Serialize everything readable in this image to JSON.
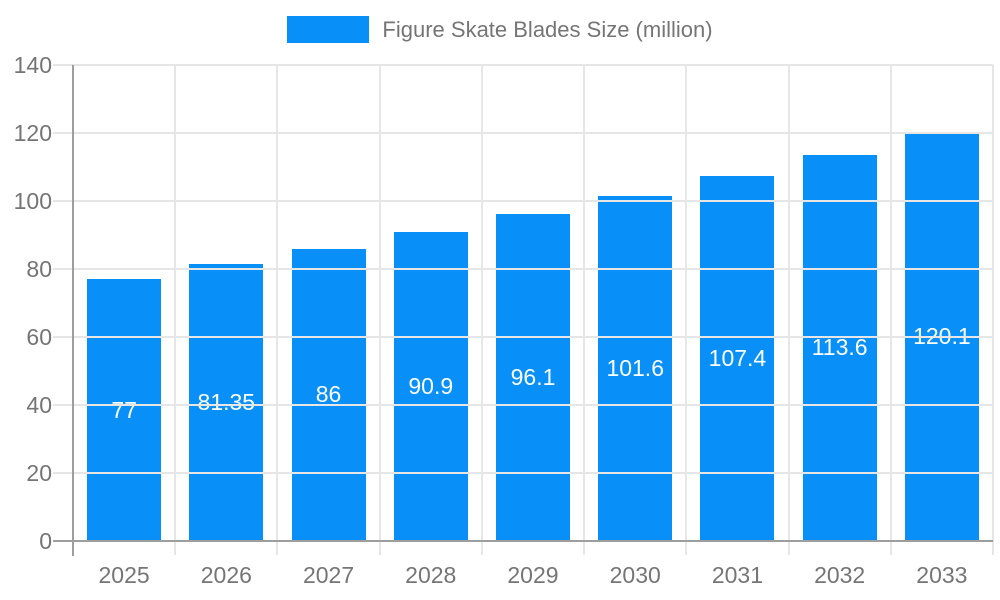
{
  "legend": {
    "label": "Figure Skate Blades Size (million)",
    "swatch_color": "#0890f8"
  },
  "chart_data": {
    "type": "bar",
    "title": "Figure Skate Blades Size (million)",
    "categories": [
      "2025",
      "2026",
      "2027",
      "2028",
      "2029",
      "2030",
      "2031",
      "2032",
      "2033"
    ],
    "values": [
      77,
      81.35,
      86,
      90.9,
      96.1,
      101.6,
      107.4,
      113.6,
      120.1
    ],
    "value_labels": [
      "77",
      "81.35",
      "86",
      "90.9",
      "96.1",
      "101.6",
      "107.4",
      "113.6",
      "120.1"
    ],
    "xlabel": "",
    "ylabel": "",
    "ylim": [
      0,
      140
    ],
    "yticks": [
      0,
      20,
      40,
      60,
      80,
      100,
      120,
      140
    ],
    "ytick_labels": [
      "0",
      "20",
      "40",
      "60",
      "80",
      "100",
      "120",
      "140"
    ],
    "grid": true,
    "legend_position": "top-center",
    "bar_color": "#0890f8",
    "value_label_color": "#ffffff",
    "axis_text_color": "#757575",
    "axis_line_color": "#9e9e9e",
    "gridline_color": "#e6e6e6"
  }
}
